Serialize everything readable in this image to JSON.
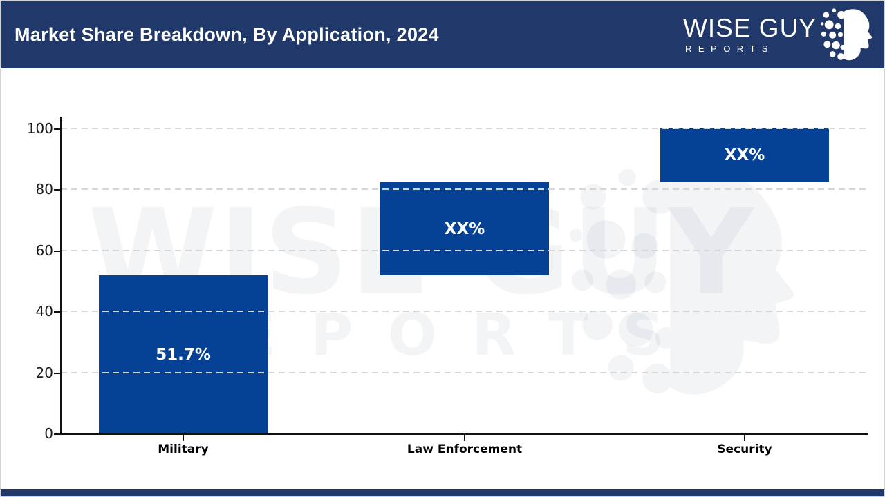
{
  "header": {
    "title": "Market Share Breakdown, By Application, 2024",
    "brand": {
      "name_top": "WISE GUY",
      "name_bottom": "REPORTS"
    }
  },
  "watermark": {
    "line1": "WISE GUY",
    "line2": "REPORTS"
  },
  "colors": {
    "header_bg": "#20396A",
    "footer_bg": "#20396A",
    "bar": "#054296",
    "bar_label": "#FFFFFF",
    "axis": "#111111",
    "grid": "#D6D6D6",
    "tick_label": "#1A1A1A",
    "category_label": "#000000",
    "watermark_tint": "#1F3864"
  },
  "chart_data": {
    "type": "bar",
    "subtype": "waterfall",
    "title": "Market Share Breakdown, By Application, 2024",
    "xlabel": "",
    "ylabel": "",
    "ylim": [
      0,
      100
    ],
    "yticks": [
      0,
      20,
      40,
      60,
      80,
      100
    ],
    "grid": "horizontal-dashed",
    "legend": "none",
    "categories": [
      "Military",
      "Law Enforcement",
      "Security"
    ],
    "series": [
      {
        "name": "Market Share (%)",
        "segments": [
          {
            "category": "Military",
            "start": 0,
            "end": 51.7,
            "label": "51.7%"
          },
          {
            "category": "Law Enforcement",
            "start": 51.7,
            "end": 82.3,
            "label": "XX%"
          },
          {
            "category": "Security",
            "start": 82.3,
            "end": 100,
            "label": "XX%"
          }
        ]
      }
    ]
  }
}
